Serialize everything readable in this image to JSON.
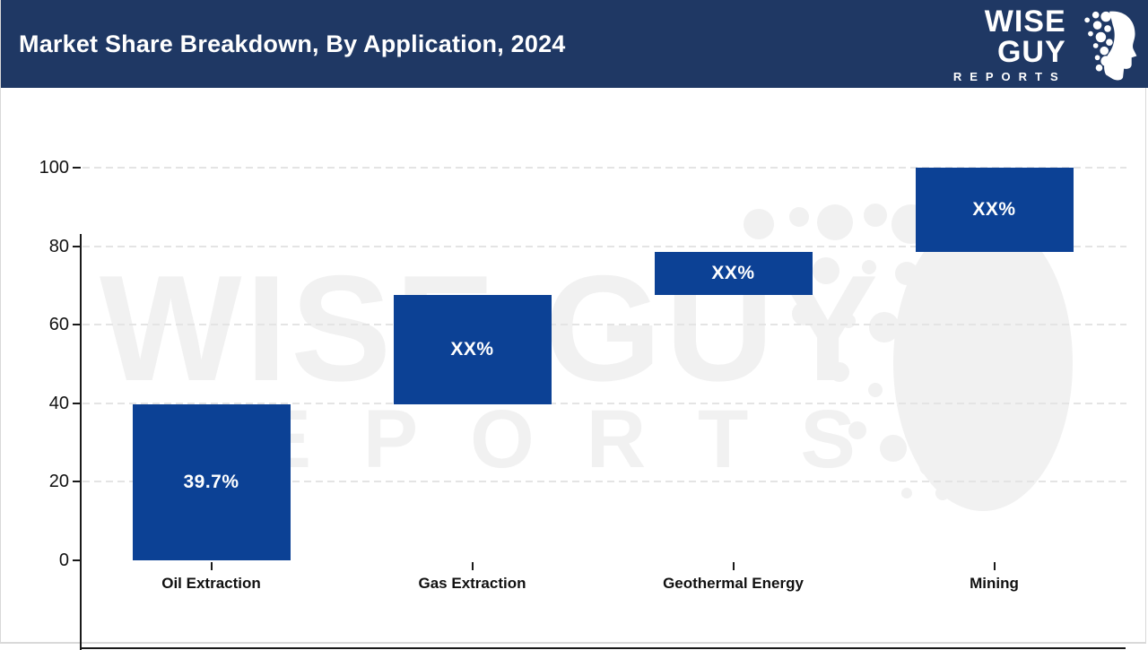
{
  "header": {
    "title": "Market Share Breakdown, By Application, 2024",
    "bg_color": "#1f3864",
    "logo": {
      "line1": "WISE GUY",
      "line2": "REPORTS"
    }
  },
  "watermark": {
    "line1": "WISE GUY",
    "line2": "REPORTS"
  },
  "chart_data": {
    "type": "bar",
    "subtype": "waterfall",
    "title": "Market Share Breakdown, By Application, 2024",
    "categories": [
      "Oil Extraction",
      "Gas Extraction",
      "Geothermal Energy",
      "Mining"
    ],
    "bars": [
      {
        "category": "Oil Extraction",
        "start": 0,
        "end": 39.7,
        "label": "39.7%"
      },
      {
        "category": "Gas Extraction",
        "start": 39.7,
        "end": 67.6,
        "label": "XX%"
      },
      {
        "category": "Geothermal Energy",
        "start": 67.6,
        "end": 78.6,
        "label": "XX%"
      },
      {
        "category": "Mining",
        "start": 78.6,
        "end": 100,
        "label": "XX%"
      }
    ],
    "yticks": [
      0,
      20,
      40,
      60,
      80,
      100
    ],
    "ylim": [
      0,
      105
    ],
    "xlabel": "",
    "ylabel": "",
    "bar_color": "#0c4195",
    "bar_label_color": "#ffffff",
    "grid": "horizontal-dashed",
    "gridline_color": "#e4e4e4",
    "legend": "none"
  }
}
